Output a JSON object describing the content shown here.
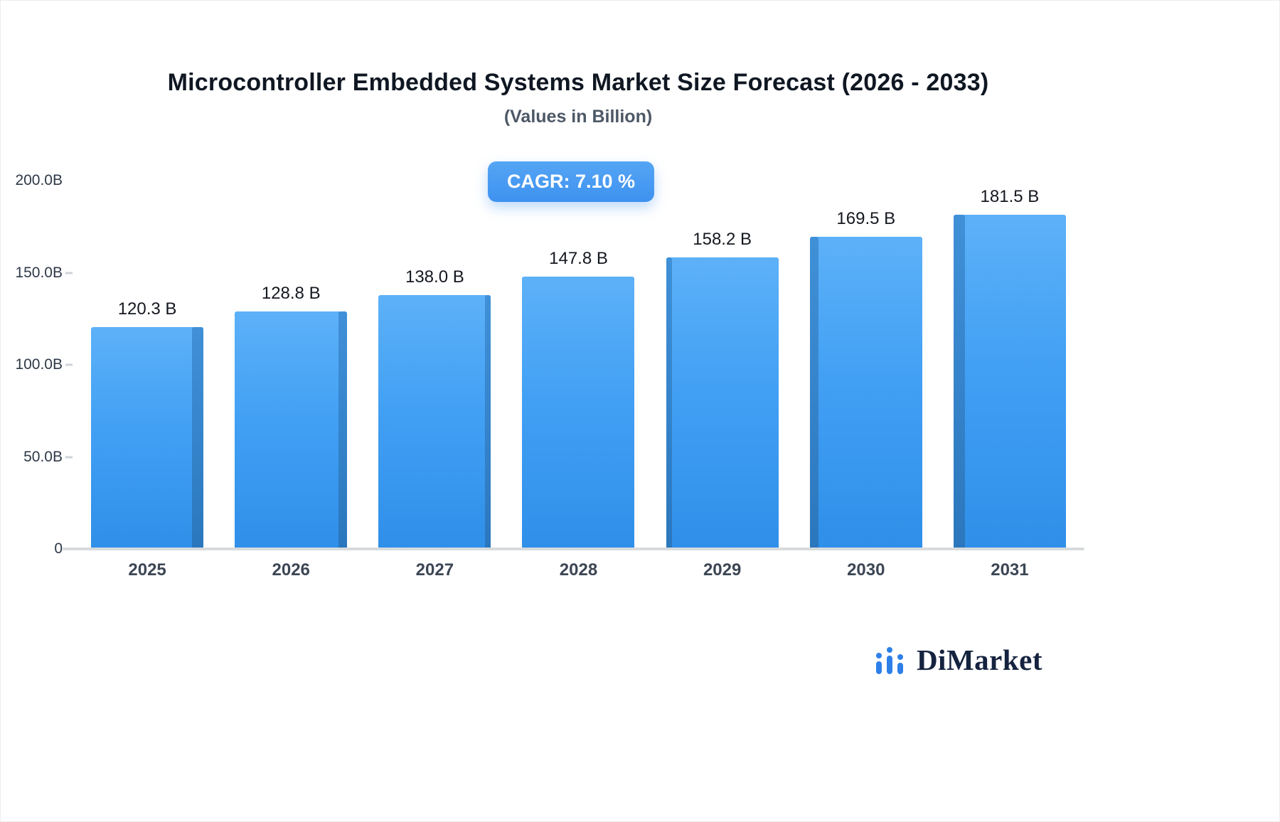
{
  "title": "Microcontroller Embedded Systems Market Size Forecast (2026 - 2033)",
  "subtitle": "(Values in Billion)",
  "cagr_label": "CAGR: 7.10 %",
  "brand": {
    "name": "DiMarket"
  },
  "chart_data": {
    "type": "bar",
    "title": "Microcontroller Embedded Systems Market Size Forecast (2026 - 2033)",
    "subtitle": "(Values in Billion)",
    "annotation": "CAGR: 7.10 %",
    "categories": [
      "2025",
      "2026",
      "2027",
      "2028",
      "2029",
      "2030",
      "2031"
    ],
    "values": [
      120.3,
      128.8,
      138.0,
      147.8,
      158.2,
      169.5,
      181.5
    ],
    "bar_labels": [
      "120.3 B",
      "128.8 B",
      "138.0 B",
      "147.8 B",
      "158.2 B",
      "169.5 B",
      "181.5 B"
    ],
    "y_ticks": [
      {
        "label": "200.0B",
        "value": 200
      },
      {
        "label": "150.0B",
        "value": 150
      },
      {
        "label": "100.0B",
        "value": 100
      },
      {
        "label": "50.0B",
        "value": 50
      },
      {
        "label": "0",
        "value": 0
      }
    ],
    "xlabel": "",
    "ylabel": "",
    "ylim": [
      0,
      200
    ],
    "grid": false,
    "legend": "none",
    "bar_color": "#3da1f5",
    "bar_side_color": "#2b77bd",
    "badge_color": "#479bf3"
  }
}
